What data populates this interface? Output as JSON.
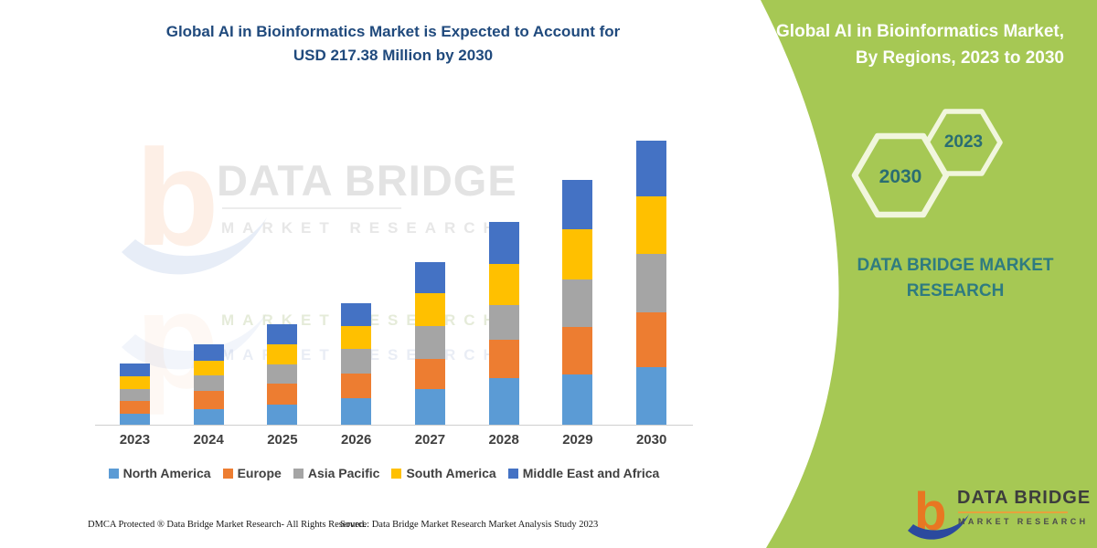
{
  "title": {
    "line1": "Global AI in Bioinformatics Market is Expected to Account for",
    "line2": "USD 217.38 Million by 2030"
  },
  "side_panel": {
    "background_color": "#a6c854",
    "heading_line1": "Global AI in Bioinformatics Market,",
    "heading_line2": "By Regions, 2023 to 2030",
    "hexagon_2030": "2030",
    "hexagon_2023": "2023",
    "brand_line1": "DATA BRIDGE MARKET",
    "brand_line2": "RESEARCH",
    "logo_name": "DATA BRIDGE",
    "logo_sub": "MARKET RESEARCH",
    "logo_accent_color": "#e87722",
    "logo_swoosh_color": "#2b4a9e",
    "text_accent_color": "#2f7b80"
  },
  "watermark": {
    "brand": "DATA BRIDGE",
    "sub": "MARKET RESEARCH"
  },
  "footer": {
    "dmca": "DMCA Protected ® Data Bridge Market Research-  All Rights Reserved.",
    "source": "Source: Data Bridge Market Research  Market Analysis Study 2023"
  },
  "chart_data": {
    "type": "bar",
    "stacked": true,
    "title": "Global AI in Bioinformatics Market is Expected to Account for USD 217.38 Million by 2030",
    "unit": "USD Million",
    "categories": [
      "2023",
      "2024",
      "2025",
      "2026",
      "2027",
      "2028",
      "2029",
      "2030"
    ],
    "series": [
      {
        "name": "North America",
        "color": "#5b9bd5",
        "values": [
          8.2,
          11.7,
          15.1,
          20.5,
          27.0,
          35.9,
          38.5,
          44.3
        ]
      },
      {
        "name": "Europe",
        "color": "#ed7d31",
        "values": [
          9.8,
          14.0,
          16.2,
          18.7,
          23.5,
          29.0,
          36.6,
          42.0
        ]
      },
      {
        "name": "Asia Pacific",
        "color": "#a5a5a5",
        "values": [
          9.5,
          12.3,
          15.1,
          18.7,
          25.0,
          26.7,
          35.7,
          44.3
        ]
      },
      {
        "name": "South America",
        "color": "#ffc000",
        "values": [
          9.4,
          11.0,
          15.1,
          17.5,
          25.0,
          31.3,
          38.9,
          44.38
        ]
      },
      {
        "name": "Middle East and Africa",
        "color": "#4472c4",
        "values": [
          9.7,
          12.4,
          15.5,
          17.5,
          24.1,
          32.1,
          37.3,
          42.4
        ]
      }
    ],
    "totals": [
      46.6,
      61.4,
      77.0,
      92.9,
      124.6,
      155.0,
      187.0,
      217.38
    ],
    "highlight_total_2030": 217.38,
    "xlabel": "",
    "ylabel": "",
    "y_axis_visible": false,
    "gridlines": false,
    "legend_position": "bottom"
  }
}
